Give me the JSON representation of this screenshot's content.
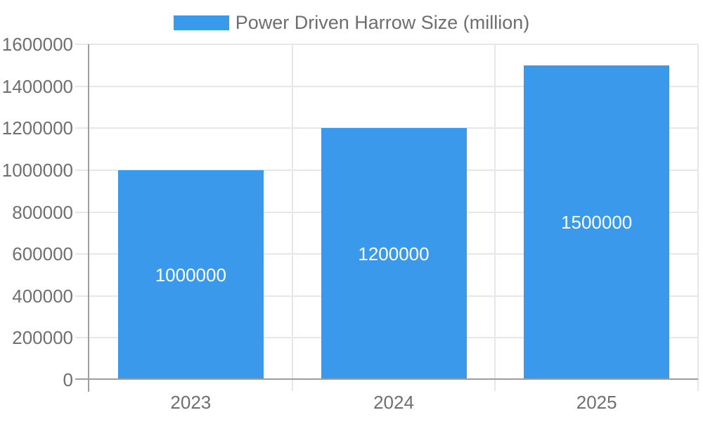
{
  "chart_data": {
    "type": "bar",
    "title": "Power Driven Harrow Size (million)",
    "legend_position": "top",
    "categories": [
      "2023",
      "2024",
      "2025"
    ],
    "series": [
      {
        "name": "Power Driven Harrow Size (million)",
        "values": [
          1000000,
          1200000,
          1500000
        ]
      }
    ],
    "bar_value_labels": [
      "1000000",
      "1200000",
      "1500000"
    ],
    "y_ticks": [
      0,
      200000,
      400000,
      600000,
      800000,
      1000000,
      1200000,
      1400000,
      1600000
    ],
    "y_tick_labels": [
      "0",
      "200000",
      "400000",
      "600000",
      "800000",
      "1000000",
      "1200000",
      "1400000",
      "1600000"
    ],
    "ylim": [
      0,
      1600000
    ],
    "xlabel": "",
    "ylabel": "",
    "grid": true,
    "colors": {
      "bar": "#3B99EC",
      "gridline": "#E7E7E7",
      "axis_line": "#9E9E9E",
      "tick_label": "#6F6F6F",
      "legend_text": "#6E6E6E",
      "bar_label_text": "#FFFFFF",
      "background": "#FFFFFF"
    }
  }
}
